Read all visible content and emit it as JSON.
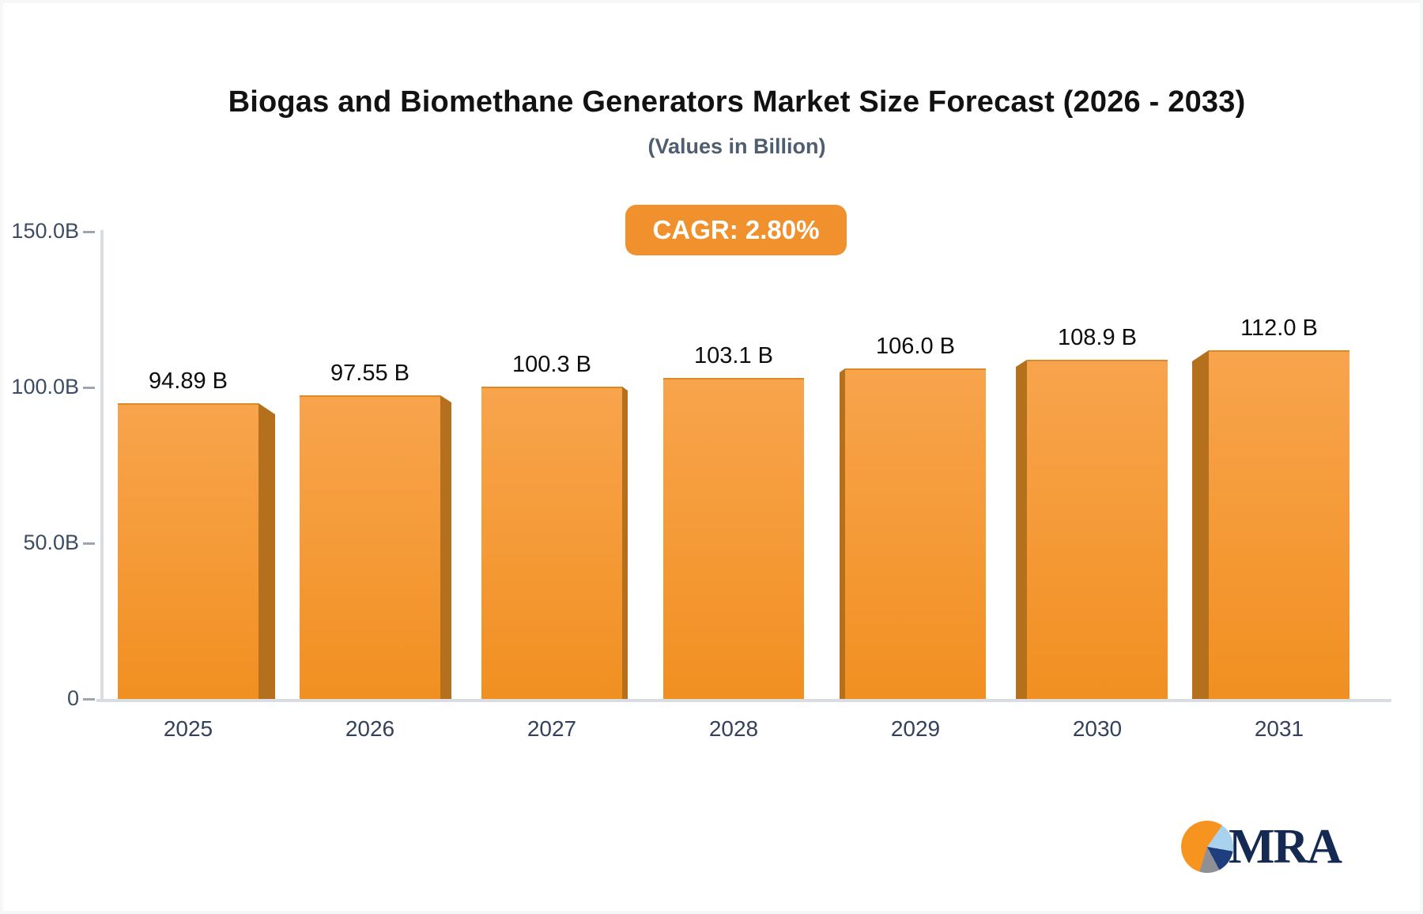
{
  "header": {
    "title": "Biogas and Biomethane Generators Market Size Forecast (2026 - 2033)",
    "subtitle": "(Values in Billion)",
    "cagr_badge": "CAGR: 2.80%"
  },
  "chart_data": {
    "type": "bar",
    "title": "Biogas and Biomethane Generators Market Size Forecast (2026 - 2033)",
    "subtitle": "(Values in Billion)",
    "cagr_pct": 2.8,
    "categories": [
      "2025",
      "2026",
      "2027",
      "2028",
      "2029",
      "2030",
      "2031"
    ],
    "values": [
      94.89,
      97.55,
      100.3,
      103.1,
      106.0,
      108.9,
      112.0
    ],
    "value_labels": [
      "94.89 B",
      "97.55 B",
      "100.3 B",
      "103.1 B",
      "106.0 B",
      "108.9 B",
      "112.0 B"
    ],
    "xlabel": "",
    "ylabel": "",
    "ylim": [
      0,
      150
    ],
    "y_axis": {
      "tick_labels": [
        "150.0B",
        "100.0B",
        "50.0B",
        "0"
      ],
      "tick_values": [
        150,
        100,
        50,
        0
      ]
    },
    "grid": "off",
    "legend": "none",
    "bar_style": "3d-extruded, perspective vanishing toward center"
  },
  "colors": {
    "bar_face_top": "#f8a44d",
    "bar_face_bottom": "#f19021",
    "bar_side": "#b5701e",
    "badge_background": "#f0912d",
    "axis_line": "#d9dce0",
    "axis_text": "#3d4d63",
    "title_text": "#121212",
    "subtitle_text": "#4e5d6f"
  },
  "logo": {
    "text": "MRA"
  }
}
